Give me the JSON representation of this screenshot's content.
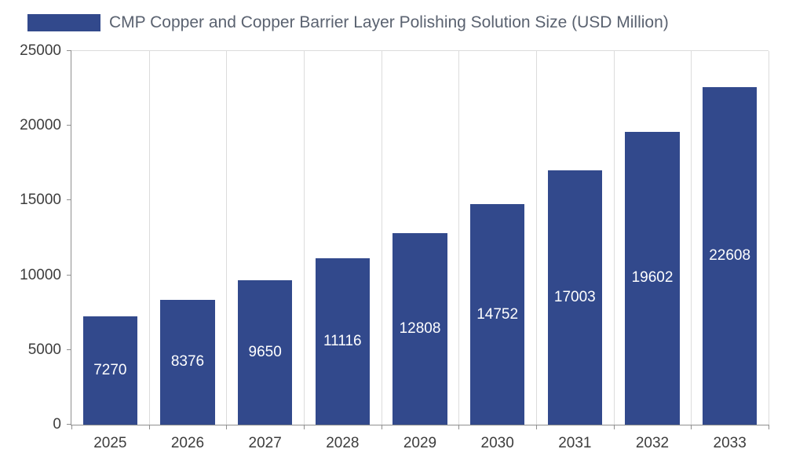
{
  "legend": {
    "title": "CMP Copper and Copper Barrier Layer Polishing Solution Size (USD Million)"
  },
  "colors": {
    "background": "#ffffff",
    "bar": "#32498c",
    "title_text": "#5a6270",
    "axis_line": "#8f8f8f",
    "grid_line": "#dcdcdc",
    "tick_label": "#3d3d3d",
    "value_label": "#ffffff"
  },
  "chart_data": {
    "type": "bar",
    "title": "CMP Copper and Copper Barrier Layer Polishing Solution Size (USD Million)",
    "categories": [
      "2025",
      "2026",
      "2027",
      "2028",
      "2029",
      "2030",
      "2031",
      "2032",
      "2033"
    ],
    "values": [
      7270,
      8376,
      9650,
      11116,
      12808,
      14752,
      17003,
      19602,
      22608
    ],
    "xlabel": "",
    "ylabel": "",
    "ylim": [
      0,
      25000
    ],
    "yticks": [
      0,
      5000,
      10000,
      15000,
      20000,
      25000
    ],
    "grid": "vertical-only",
    "legend_position": "top-left",
    "bar_color": "#32498c",
    "value_labels": "inside-center",
    "value_label_color": "#ffffff"
  }
}
